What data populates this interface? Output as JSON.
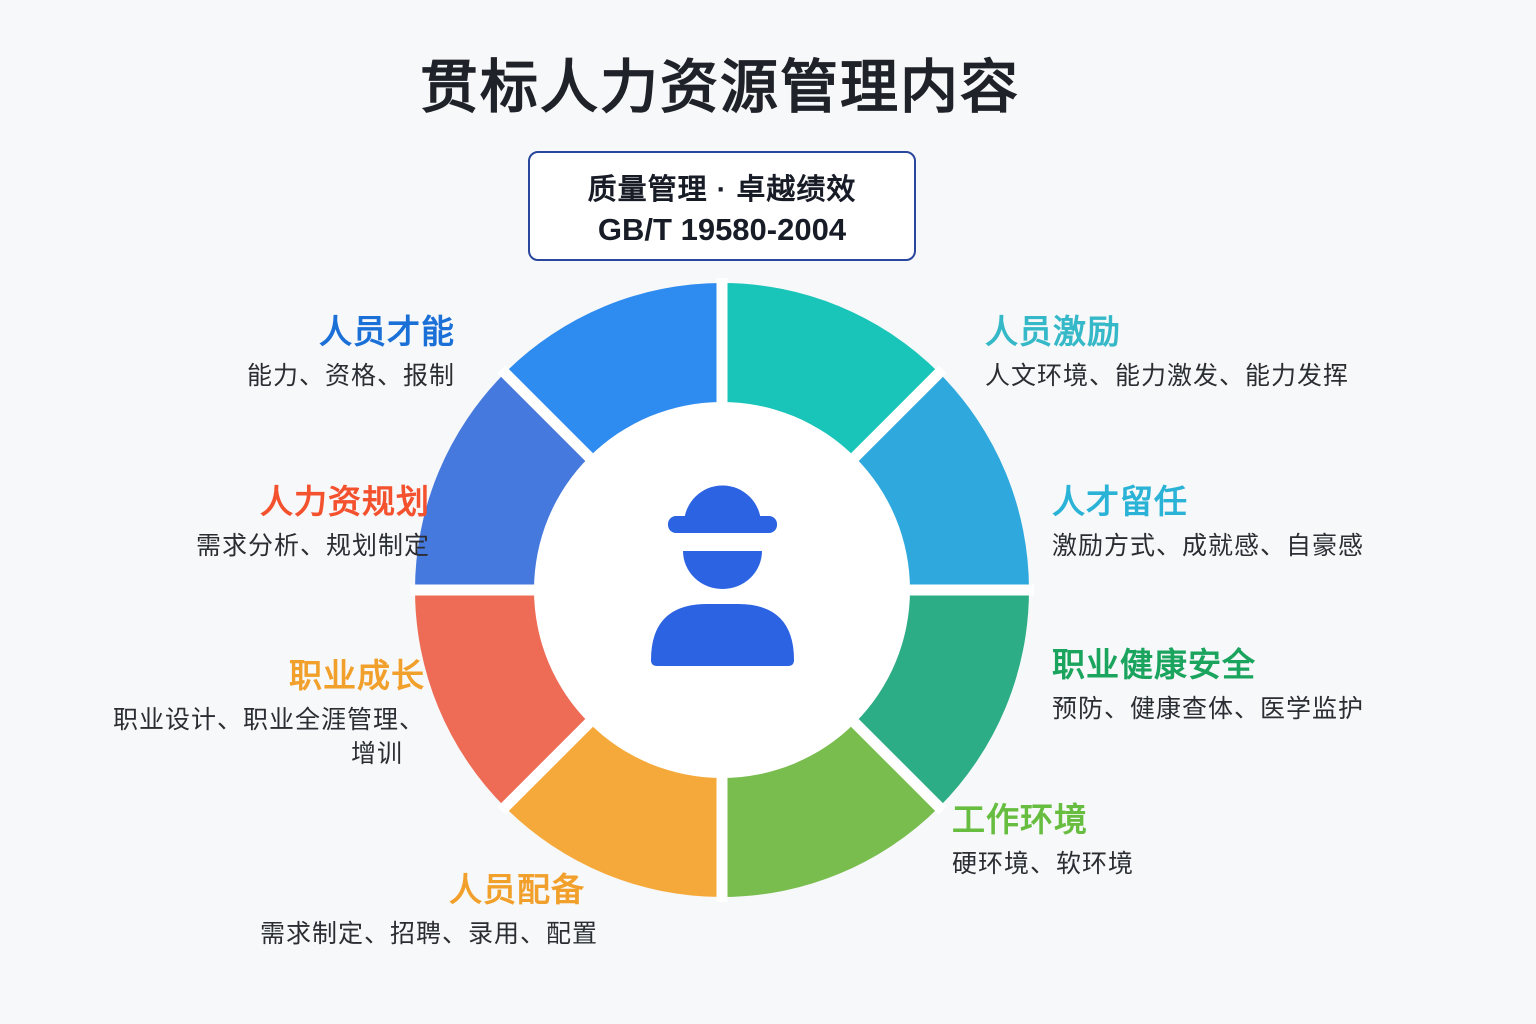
{
  "title": "贯标人力资源管理内容",
  "standard_box": {
    "line1": "质量管理 · 卓越绩效",
    "line2": "GB/T 19580-2004"
  },
  "wheel": {
    "icon": "worker-icon",
    "icon_color": "#2c63e2",
    "hole_color": "#ffffff",
    "gap_color": "#ffffff",
    "segments": [
      {
        "id": "motivation",
        "color": "#19c4b9"
      },
      {
        "id": "retention",
        "color": "#2fa9dd"
      },
      {
        "id": "health-safety",
        "color": "#2cad85"
      },
      {
        "id": "work-environment",
        "color": "#78bd4d"
      },
      {
        "id": "staffing",
        "color": "#f5a93b"
      },
      {
        "id": "career-growth",
        "color": "#ee6b55"
      },
      {
        "id": "hr-planning",
        "color": "#4579dd"
      },
      {
        "id": "talent",
        "color": "#2e8bf0"
      }
    ]
  },
  "labels": [
    {
      "id": "talent",
      "title": "人员才能",
      "desc": "能力、资格、报制",
      "color": "#1b70d8"
    },
    {
      "id": "hr-planning",
      "title": "人力资规划",
      "desc": "需求分析、规划制定",
      "color": "#f4512e"
    },
    {
      "id": "career-growth",
      "title": "职业成长",
      "desc": "职业设计、职业全涯管理、",
      "desc2": "增训",
      "color": "#f2a02c"
    },
    {
      "id": "staffing",
      "title": "人员配备",
      "desc": "需求制定、招聘、录用、配置",
      "color": "#f2a02c"
    },
    {
      "id": "motivation",
      "title": "人员激励",
      "desc": "人文环境、能力激发、能力发挥",
      "color": "#35b8c8"
    },
    {
      "id": "retention",
      "title": "人才留任",
      "desc": "激励方式、成就感、自豪感",
      "color": "#2ab3d6"
    },
    {
      "id": "health-safety",
      "title": "职业健康安全",
      "desc": "预防、健康查体、医学监护",
      "color": "#1ba45e"
    },
    {
      "id": "work-environment",
      "title": "工作环境",
      "desc": "硬环境、软环境",
      "color": "#67bd3f"
    }
  ]
}
